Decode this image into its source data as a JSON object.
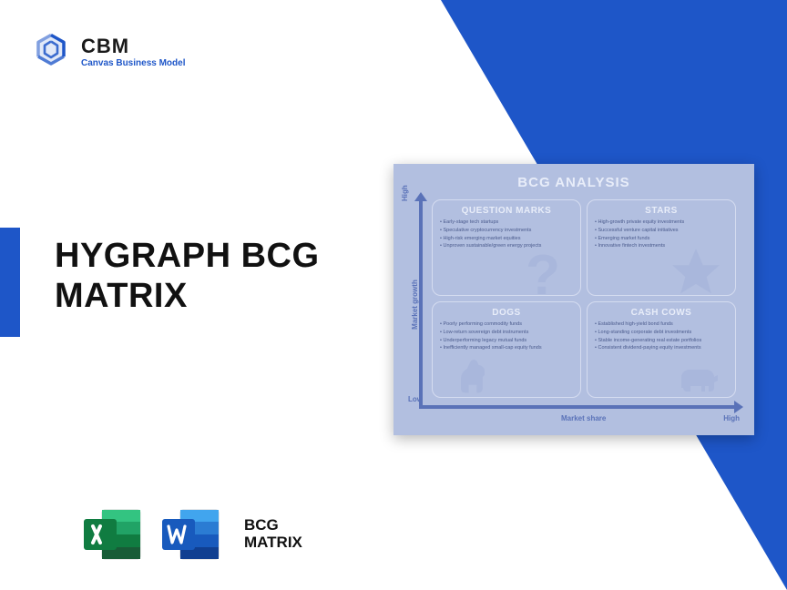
{
  "logo": {
    "abbr": "CBM",
    "subtitle": "Canvas Business Model",
    "icon_color": "#1e56c8"
  },
  "title": "HYGRAPH BCG\nMATRIX",
  "footer": {
    "label": "BCG\nMATRIX",
    "excel_colors": [
      "#107c41",
      "#21a366",
      "#33c481",
      "#185c37"
    ],
    "word_colors": [
      "#103f91",
      "#2b7cd3",
      "#41a5ee",
      "#185abd"
    ]
  },
  "accent_color": "#1e56c8",
  "background_triangle_color": "#1e56c8",
  "chart": {
    "type": "bcg-matrix",
    "title": "BCG ANALYSIS",
    "card_bg": "#b2bfe0",
    "axis_color": "#5a72b8",
    "title_color": "#e8edf9",
    "text_color": "#4a5a8c",
    "y_axis": {
      "label": "Market growth",
      "high": "High",
      "low": "Low"
    },
    "x_axis": {
      "label": "Market share",
      "high": "High"
    },
    "quadrants": [
      {
        "key": "question_marks",
        "title": "QUESTION MARKS",
        "items": [
          "Early-stage tech startups",
          "Speculative cryptocurrency investments",
          "High-risk emerging market equities",
          "Unproven sustainable/green energy projects"
        ]
      },
      {
        "key": "stars",
        "title": "STARS",
        "items": [
          "High-growth private equity investments",
          "Successful venture capital initiatives",
          "Emerging market funds",
          "Innovative fintech investments"
        ]
      },
      {
        "key": "dogs",
        "title": "DOGS",
        "items": [
          "Poorly performing commodity funds",
          "Low-return sovereign debt instruments",
          "Underperforming legacy mutual funds",
          "Inefficiently managed small-cap equity funds"
        ]
      },
      {
        "key": "cash_cows",
        "title": "CASH COWS",
        "items": [
          "Established high-yield bond funds",
          "Long-standing corporate debt investments",
          "Stable income-generating real estate portfolios",
          "Consistent dividend-paying equity investments"
        ]
      }
    ]
  }
}
